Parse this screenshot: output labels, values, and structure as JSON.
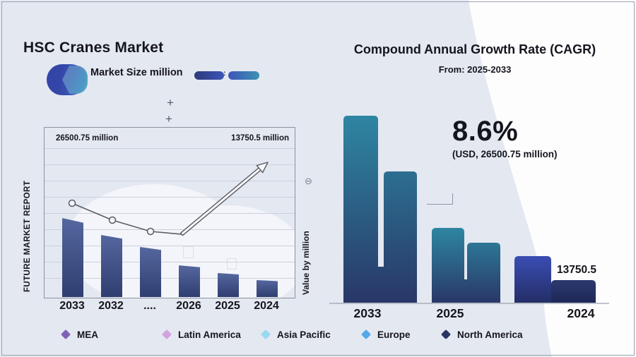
{
  "header": {
    "title": "HSC Cranes Market",
    "legend_label": "Market Size million",
    "ratio_separator": ":"
  },
  "decorations": {
    "plus_top": "+",
    "plus_bottom": "+",
    "circle_minus_icon": "⊖"
  },
  "left_chart": {
    "max_label": "26500.75 million",
    "min_label": "13750.5 million",
    "side_label": "FUTURE MARKET REPORT",
    "value_axis_label": "Value by million",
    "categories": [
      "2033",
      "2032",
      "....",
      "2026",
      "2025",
      "2024"
    ]
  },
  "right_section": {
    "title": "Compound Annual Growth Rate (CAGR)",
    "subtitle": "From: 2025-2033",
    "cagr_value": "8.6%",
    "cagr_caption": "(USD, 26500.75 million)",
    "bar_callout": "13750.5",
    "categories": [
      "2033",
      "2025",
      "2024"
    ]
  },
  "legend": {
    "items": [
      {
        "label": "MEA",
        "color": "#7f62b8"
      },
      {
        "label": "Latin America",
        "color": "#d2a3dc"
      },
      {
        "label": "Asia Pacific",
        "color": "#97d9f2"
      },
      {
        "label": "Europe",
        "color": "#55a9ea"
      },
      {
        "label": "North America",
        "color": "#2a3463"
      }
    ]
  },
  "colors": {
    "background": "#e4e8f1",
    "panel_border": "#8b919e",
    "left_bar_top": "#55679f",
    "left_bar_bottom": "#2f3e70",
    "right_bar_teal_top": "#2e86a2",
    "right_bar_teal_bottom": "#293767",
    "right_bar_blue_top": "#3b4db4",
    "right_bar_blue_bottom": "#232e66",
    "right_bar_navy_top": "#2d396e",
    "right_bar_navy_bottom": "#1d2757",
    "trend_stroke": "#5c5c63"
  },
  "chart_data": [
    {
      "type": "bar",
      "title": "HSC Cranes Market - Market Size million",
      "categories": [
        "2033",
        "2032",
        "....",
        "2026",
        "2025",
        "2024"
      ],
      "series": [
        {
          "name": "Market size bars (relative height, % of tallest)",
          "values": [
            100,
            79,
            63,
            40,
            30,
            21
          ]
        }
      ],
      "overlay_line": {
        "type": "line",
        "points_pct_of_plot_height": [
          56,
          46,
          39,
          37
        ],
        "marker_count": 3,
        "arrow_rises_to_pct": 80
      },
      "annotations": [
        "26500.75 million",
        "13750.5 million"
      ],
      "xlabel": "",
      "ylabel": "Value by million",
      "legend_position": "bottom",
      "grid": true
    },
    {
      "type": "bar",
      "title": "Compound Annual Growth Rate (CAGR)",
      "subtitle": "From: 2025-2033",
      "categories": [
        "2033",
        "2025",
        "2024"
      ],
      "series": [
        {
          "name": "bar-1 (relative height, % of tallest)",
          "values": [
            100,
            40,
            25
          ]
        },
        {
          "name": "bar-2 (relative height, % of tallest)",
          "values": [
            70,
            32,
            12
          ]
        }
      ],
      "annotations": [
        "8.6%",
        "(USD, 26500.75 million)",
        "13750.5"
      ],
      "grid": false,
      "legend_position": "bottom"
    }
  ]
}
